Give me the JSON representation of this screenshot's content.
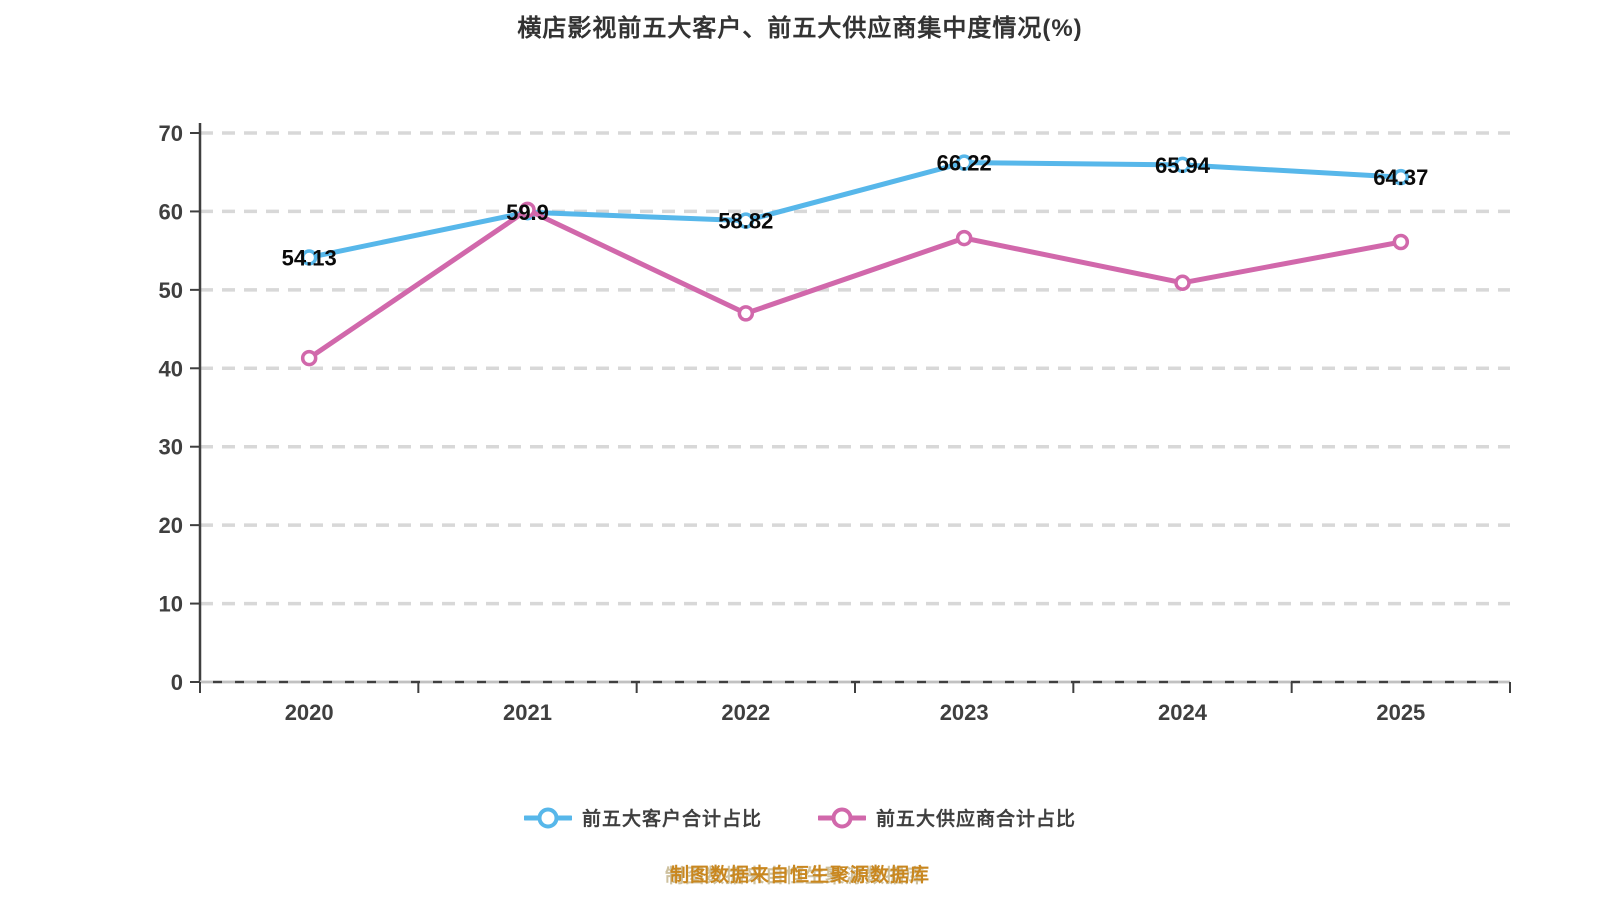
{
  "title": "横店影视前五大客户、前五大供应商集中度情况(%)",
  "source_note": "制图数据来自恒生聚源数据库",
  "colors": {
    "customer_line": "#57b7ea",
    "supplier_line": "#d168ab",
    "grid": "#d8d8d8",
    "axis": "#3f3f3f",
    "tick_label": "#3f3f3f",
    "data_label": "#0a0a0a",
    "title": "#333333",
    "source": "#c9871f",
    "marker_fill": "#ffffff"
  },
  "chart_data": {
    "type": "line",
    "x": [
      "2020",
      "2021",
      "2022",
      "2023",
      "2024",
      "2025"
    ],
    "series": [
      {
        "name": "前五大客户合计占比",
        "color": "#57b7ea",
        "values": [
          54.13,
          59.9,
          58.82,
          66.22,
          65.94,
          64.37
        ],
        "point_labels": [
          "54.13",
          "59.9",
          "58.82",
          "66.22",
          "65.94",
          "64.37"
        ]
      },
      {
        "name": "前五大供应商合计占比",
        "color": "#d168ab",
        "values": [
          41.3,
          60.2,
          47.0,
          56.6,
          50.9,
          56.1
        ],
        "point_labels": []
      }
    ],
    "ylim": [
      0,
      70
    ],
    "yticks": [
      0,
      10,
      20,
      30,
      40,
      50,
      60,
      70
    ],
    "grid": "horizontal-dashed",
    "legend_position": "bottom"
  }
}
